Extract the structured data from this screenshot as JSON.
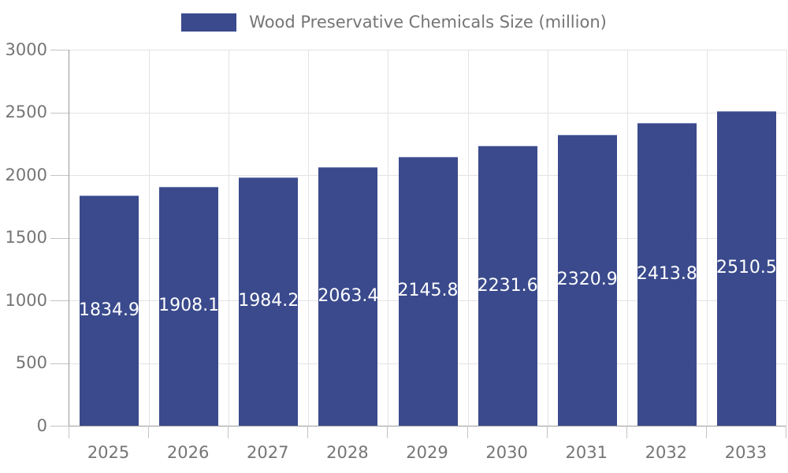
{
  "legend": {
    "label": "Wood Preservative Chemicals Size (million)",
    "swatch_color": "#3A4A8C"
  },
  "chart_data": {
    "type": "bar",
    "title": "Wood Preservative Chemicals Size (million)",
    "series_name": "Wood Preservative Chemicals Size (million)",
    "categories": [
      "2025",
      "2026",
      "2027",
      "2028",
      "2029",
      "2030",
      "2031",
      "2032",
      "2033"
    ],
    "values": [
      1834.9,
      1908.1,
      1984.2,
      2063.4,
      2145.8,
      2231.6,
      2320.9,
      2413.8,
      2510.5
    ],
    "value_labels": [
      "1834.9",
      "1908.1",
      "1984.2",
      "2063.4",
      "2145.8",
      "2231.6",
      "2320.9",
      "2413.8",
      "2510.5"
    ],
    "xlabel": "",
    "ylabel": "",
    "ylim": [
      0,
      3000
    ],
    "yticks": [
      0,
      500,
      1000,
      1500,
      2000,
      2500,
      3000
    ],
    "grid": true,
    "legend_position": "top",
    "bar_color": "#3A4A8C",
    "bar_value_label_color": "#ffffff",
    "axis_text_color": "#757575"
  }
}
